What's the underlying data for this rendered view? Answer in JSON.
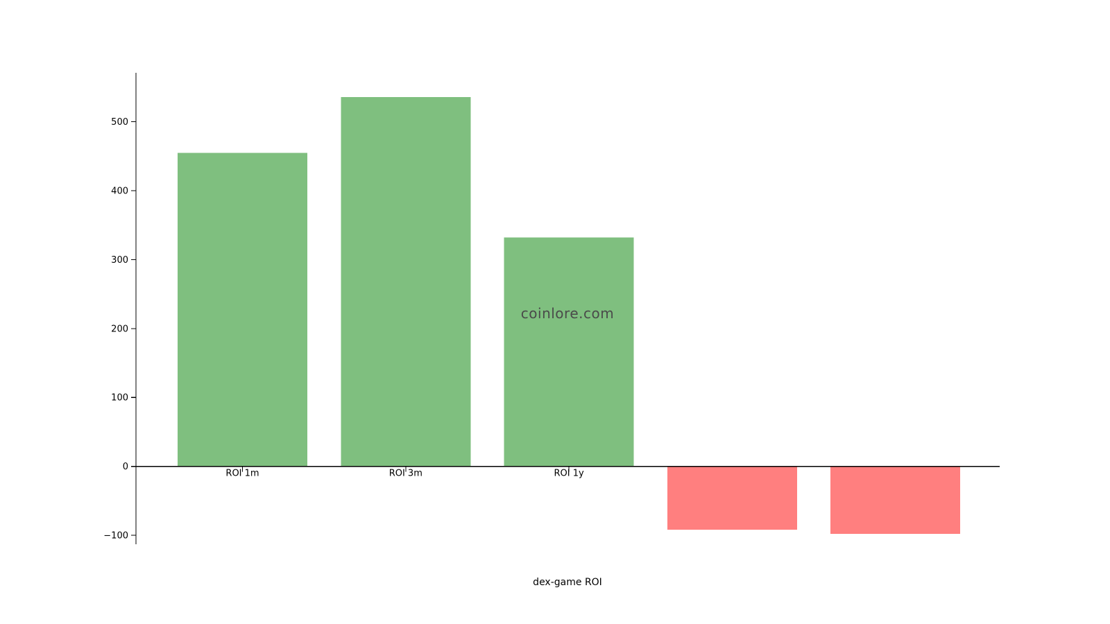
{
  "page": {
    "background": "#ffffff",
    "axis_color": "#000000",
    "tick_text_color": "#000000",
    "watermark_color": "#4a4a4a"
  },
  "chart_data": {
    "type": "bar",
    "categories": [
      "ROI 1m",
      "ROI 3m",
      "ROI 1y",
      "",
      ""
    ],
    "values": [
      455,
      536,
      332,
      -92,
      -98
    ],
    "bar_colors": [
      "#7fbf7f",
      "#7fbf7f",
      "#7fbf7f",
      "#ff7f7f",
      "#ff7f7f"
    ],
    "positive_color": "#7fbf7f",
    "negative_color": "#ff7f7f",
    "title": "",
    "xlabel": "dex-game ROI",
    "ylabel": "",
    "yticks": [
      500,
      400,
      300,
      200,
      100,
      0,
      -100
    ],
    "ytick_labels": [
      "500",
      "400",
      "300",
      "200",
      "100",
      "0",
      "−100"
    ],
    "ylim": [
      -113,
      571
    ],
    "grid": false,
    "legend": false,
    "watermark": "coinlore.com"
  }
}
